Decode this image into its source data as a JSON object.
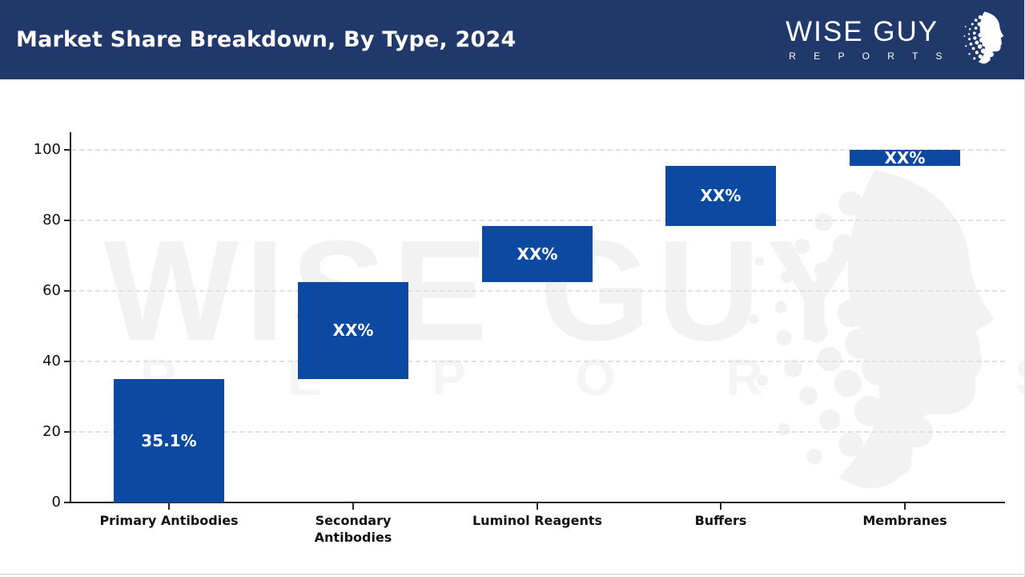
{
  "header": {
    "title": "Market Share Breakdown, By Type, 2024",
    "bg_color": "#21386B",
    "logo": {
      "line1": "WISE GUY",
      "line2": "R E P O R T S"
    }
  },
  "watermark": {
    "line1": "WISE GUY",
    "line2": "R E P O R T S"
  },
  "chart_data": {
    "type": "bar",
    "variant": "waterfall",
    "title": "Market Share Breakdown, By Type, 2024",
    "categories": [
      "Primary Antibodies",
      "Secondary\nAntibodies",
      "Luminol Reagents",
      "Buffers",
      "Membranes"
    ],
    "series": [
      {
        "name": "Market share (%)",
        "segments": [
          {
            "category": "Primary Antibodies",
            "start": 0,
            "end": 35.1,
            "label": "35.1%"
          },
          {
            "category": "Secondary Antibodies",
            "start": 35.1,
            "end": 62.5,
            "label": "XX%"
          },
          {
            "category": "Luminol Reagents",
            "start": 62.5,
            "end": 78.4,
            "label": "XX%"
          },
          {
            "category": "Buffers",
            "start": 78.4,
            "end": 95.5,
            "label": "XX%"
          },
          {
            "category": "Membranes",
            "start": 95.5,
            "end": 100,
            "label": "XX%"
          }
        ]
      }
    ],
    "xlabel": "",
    "ylabel": "",
    "ylim": [
      0,
      100
    ],
    "yticks": [
      0,
      20,
      40,
      60,
      80,
      100
    ],
    "grid": {
      "horizontal": true,
      "style": "dashed",
      "color": "#e0e0e0"
    },
    "bar_color": "#0C49A2",
    "bar_label_color": "#ffffff",
    "axis_color": "#262626"
  }
}
